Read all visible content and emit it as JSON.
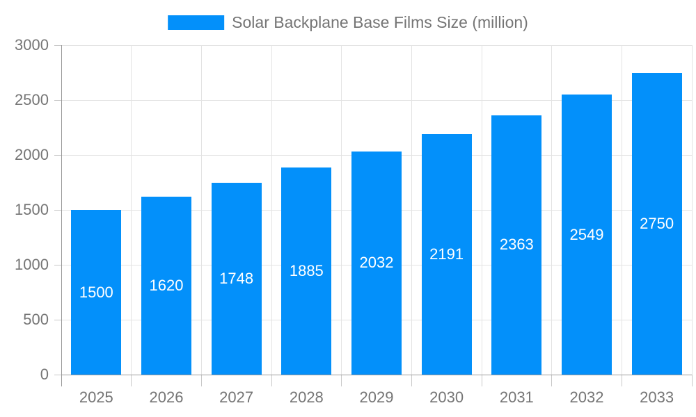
{
  "legend": {
    "label": "Solar Backplane Base Films Size (million)"
  },
  "chart_data": {
    "type": "bar",
    "title": "Solar Backplane Base Films Size (million)",
    "categories": [
      "2025",
      "2026",
      "2027",
      "2028",
      "2029",
      "2030",
      "2031",
      "2032",
      "2033"
    ],
    "values": [
      1500,
      1620,
      1748,
      1885,
      2032,
      2191,
      2363,
      2549,
      2750
    ],
    "xlabel": "",
    "ylabel": "",
    "ylim": [
      0,
      3000
    ],
    "yticks": [
      0,
      500,
      1000,
      1500,
      2000,
      2500,
      3000
    ],
    "grid": true,
    "legend_position": "top-center",
    "bar_color": "#0390fa",
    "value_label_color": "#ffffff",
    "axis_text_color": "#757575",
    "gridline_color": "#e3e3e3",
    "axis_line_color": "#9a9a9a",
    "tick_color": "#c8c8c8"
  }
}
